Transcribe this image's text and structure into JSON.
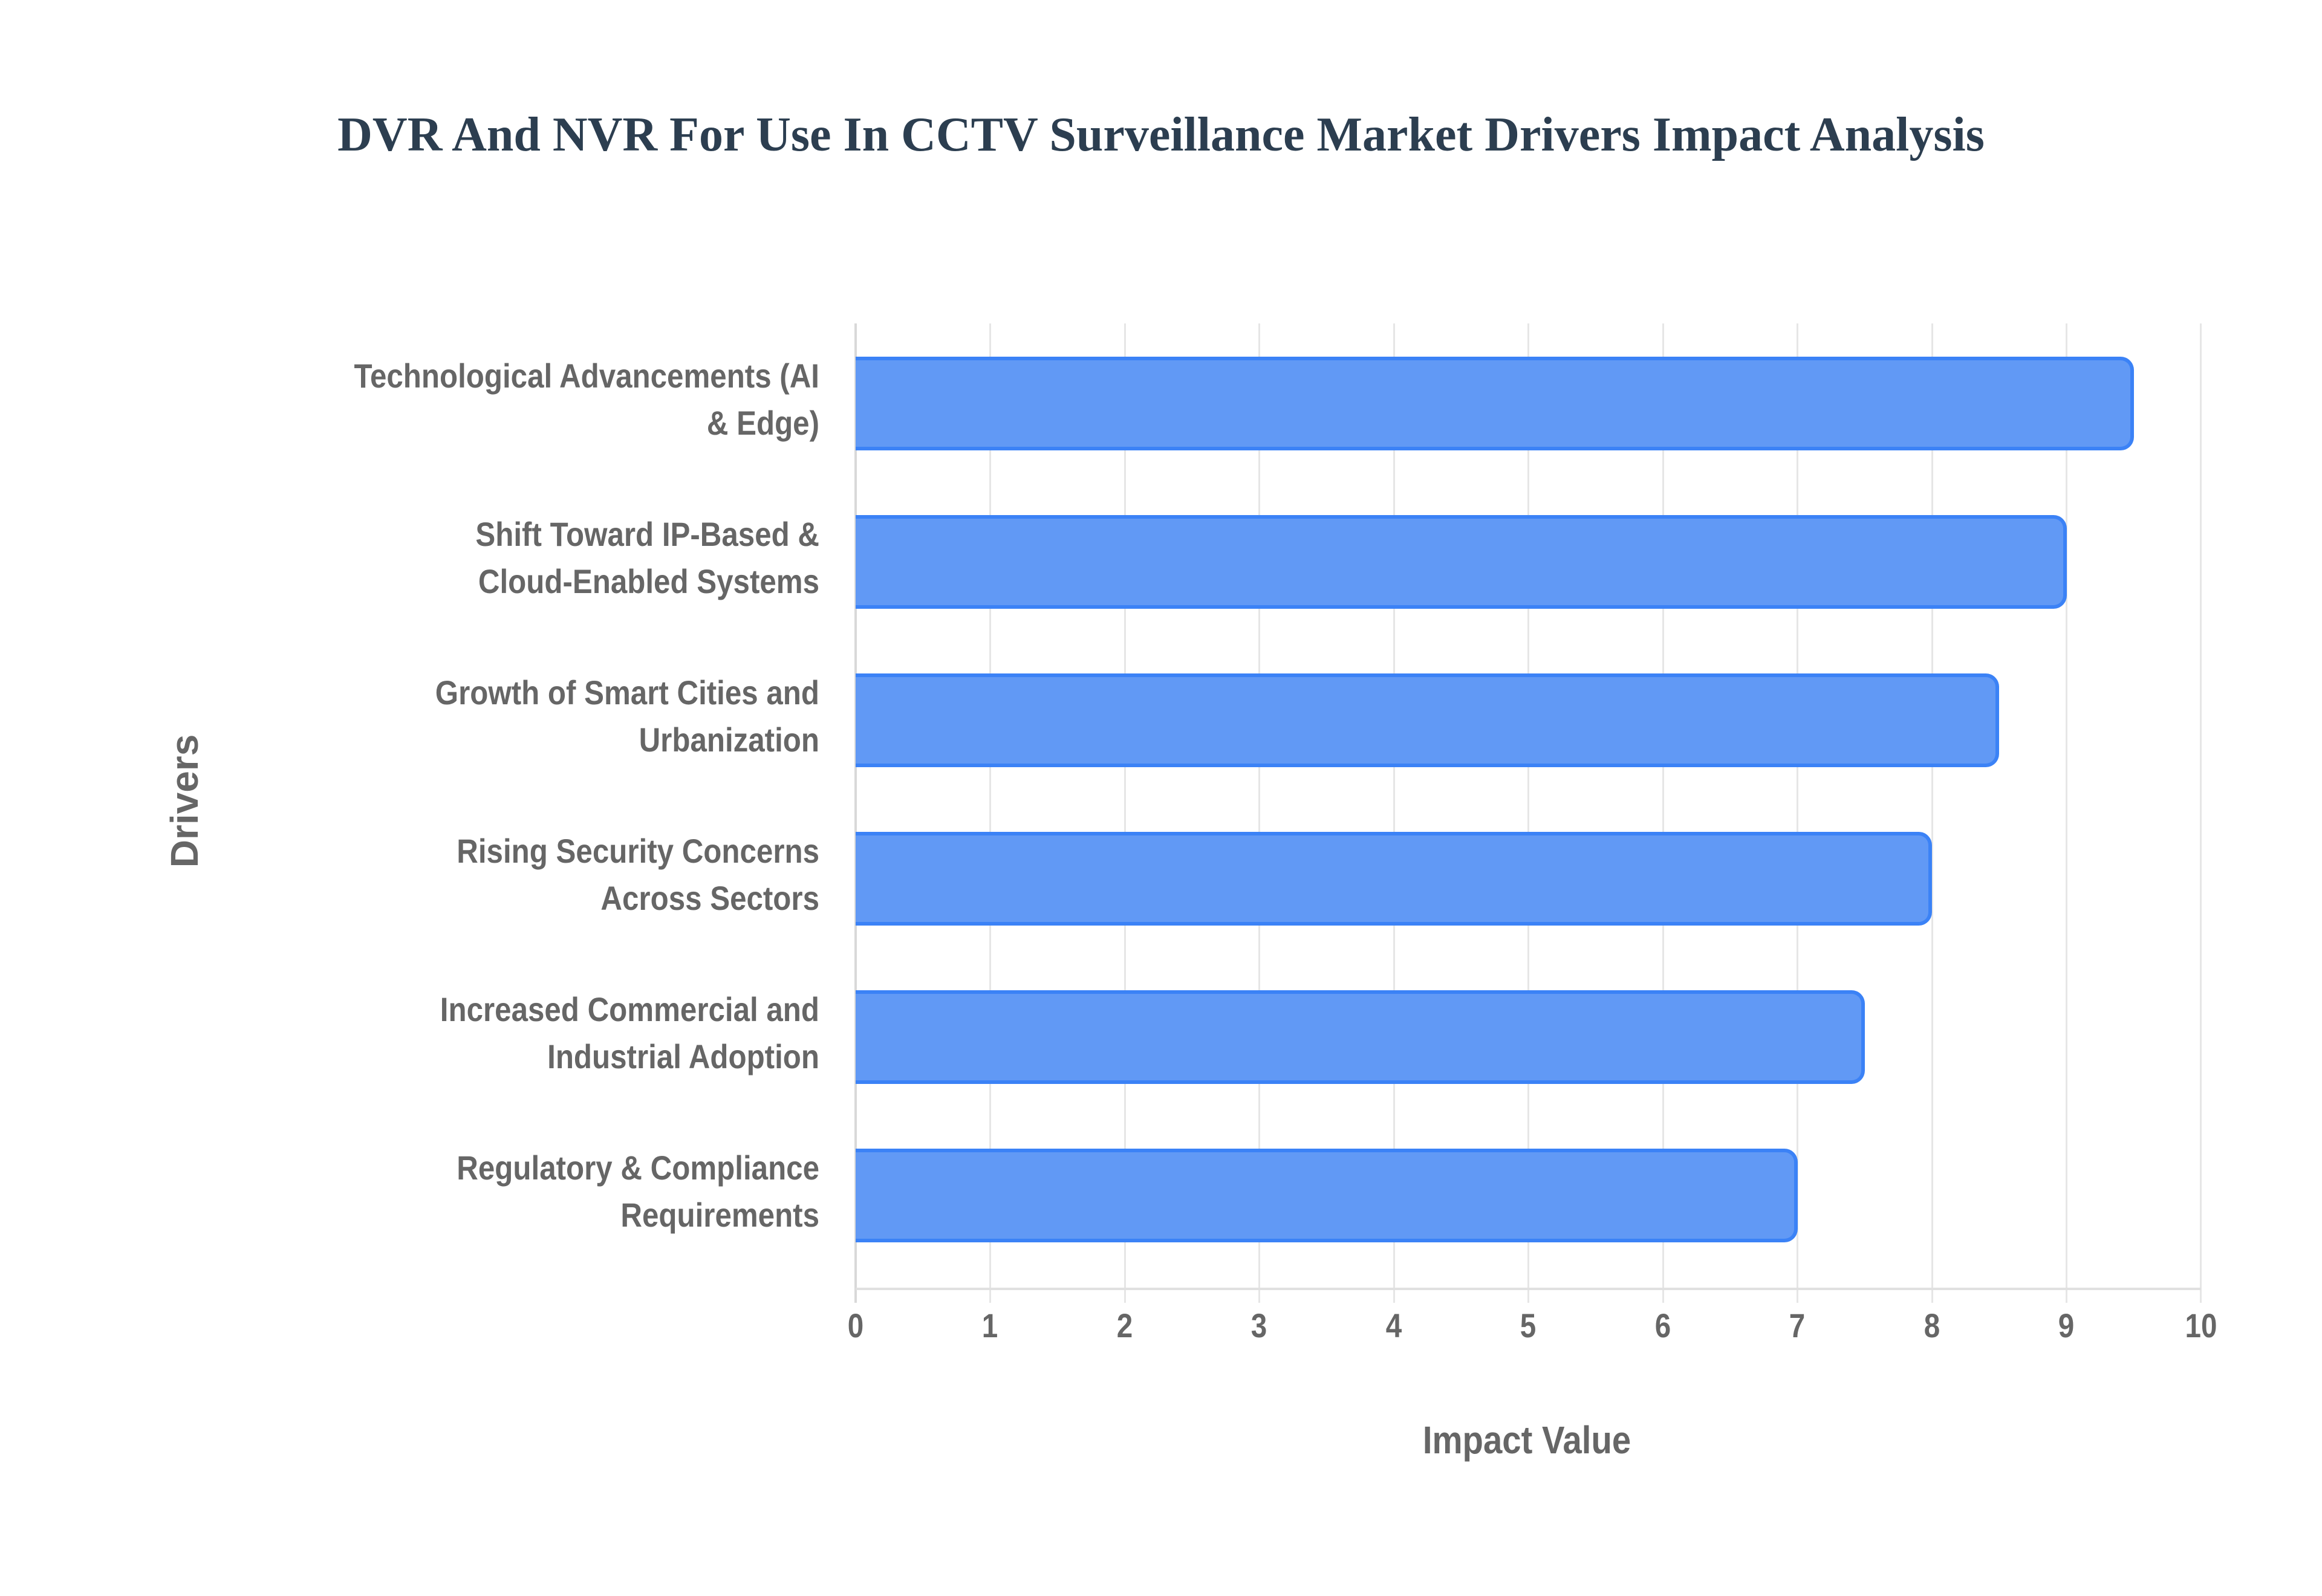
{
  "title": "DVR And NVR For Use In CCTV Surveillance Market Drivers Impact Analysis",
  "axes": {
    "x_title": "Impact Value",
    "y_title": "Drivers",
    "x_ticks": [
      "0",
      "1",
      "2",
      "3",
      "4",
      "5",
      "6",
      "7",
      "8",
      "9",
      "10"
    ]
  },
  "colors": {
    "bar_fill": "#6199f5",
    "bar_border": "#3b82f6",
    "title": "#2c3e50",
    "label": "#666666",
    "grid": "#e6e6e6"
  },
  "labels": [
    {
      "line1": "Technological Advancements (AI",
      "line2": "& Edge)"
    },
    {
      "line1": "Shift Toward IP-Based &",
      "line2": "Cloud-Enabled Systems"
    },
    {
      "line1": "Growth of Smart Cities and",
      "line2": "Urbanization"
    },
    {
      "line1": "Rising Security Concerns",
      "line2": "Across Sectors"
    },
    {
      "line1": "Increased Commercial and",
      "line2": "Industrial Adoption"
    },
    {
      "line1": "Regulatory & Compliance",
      "line2": "Requirements"
    }
  ],
  "chart_data": {
    "type": "bar",
    "orientation": "horizontal",
    "title": "DVR And NVR For Use In CCTV Surveillance Market Drivers Impact Analysis",
    "xlabel": "Impact Value",
    "ylabel": "Drivers",
    "categories": [
      "Technological Advancements (AI & Edge)",
      "Shift Toward IP-Based & Cloud-Enabled Systems",
      "Growth of Smart Cities and Urbanization",
      "Rising Security Concerns Across Sectors",
      "Increased Commercial and Industrial Adoption",
      "Regulatory & Compliance Requirements"
    ],
    "values": [
      9.5,
      9.0,
      8.5,
      8.0,
      7.5,
      7.0
    ],
    "xlim": [
      0,
      10
    ],
    "x_ticks": [
      0,
      1,
      2,
      3,
      4,
      5,
      6,
      7,
      8,
      9,
      10
    ],
    "grid": true,
    "legend": "none",
    "series": [
      {
        "name": "Impact Value",
        "values": [
          9.5,
          9.0,
          8.5,
          8.0,
          7.5,
          7.0
        ],
        "color": "#6199f5"
      }
    ]
  }
}
